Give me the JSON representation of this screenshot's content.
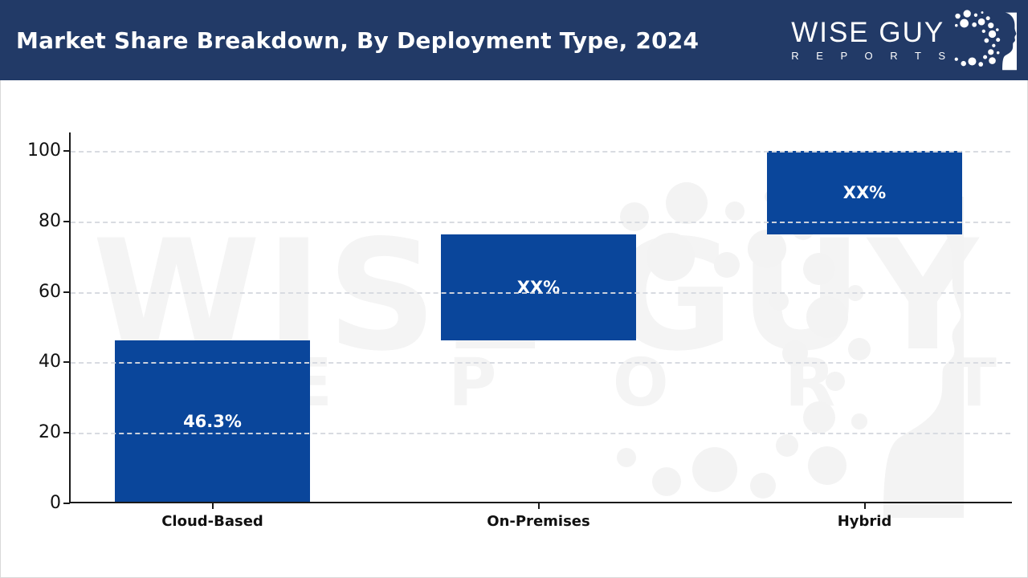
{
  "header": {
    "title": "Market Share Breakdown, By Deployment Type, 2024",
    "logo": {
      "name": "WISE GUY",
      "sub": "R E P O R T S"
    }
  },
  "watermark": {
    "line1": "WISE GUY",
    "line2": "R E P O R T S"
  },
  "chart_data": {
    "type": "bar",
    "subtype": "waterfall-stacked-percentage",
    "title": "Market Share Breakdown, By Deployment Type, 2024",
    "categories": [
      "Cloud-Based",
      "On-Premises",
      "Hybrid"
    ],
    "segments": [
      {
        "category": "Cloud-Based",
        "start": 0,
        "end": 46.3,
        "label": "46.3%"
      },
      {
        "category": "On-Premises",
        "start": 46.3,
        "end": 76.3,
        "label": "XX%"
      },
      {
        "category": "Hybrid",
        "start": 76.3,
        "end": 100,
        "label": "XX%"
      }
    ],
    "ylim": [
      0,
      100
    ],
    "yticks": [
      0,
      20,
      40,
      60,
      80,
      100
    ],
    "xlabel": "",
    "ylabel": "",
    "grid": "horizontal-dashed",
    "legend": "none",
    "bar_color": "#0A469B",
    "bar_label_color": "#ffffff"
  },
  "colors": {
    "header_bg": "#223A67",
    "bar": "#0A469B",
    "gridline": "#d6d9df",
    "axis": "#1a1a1a",
    "watermark": "#f4f4f4",
    "frame_border": "#d9d9d9"
  }
}
